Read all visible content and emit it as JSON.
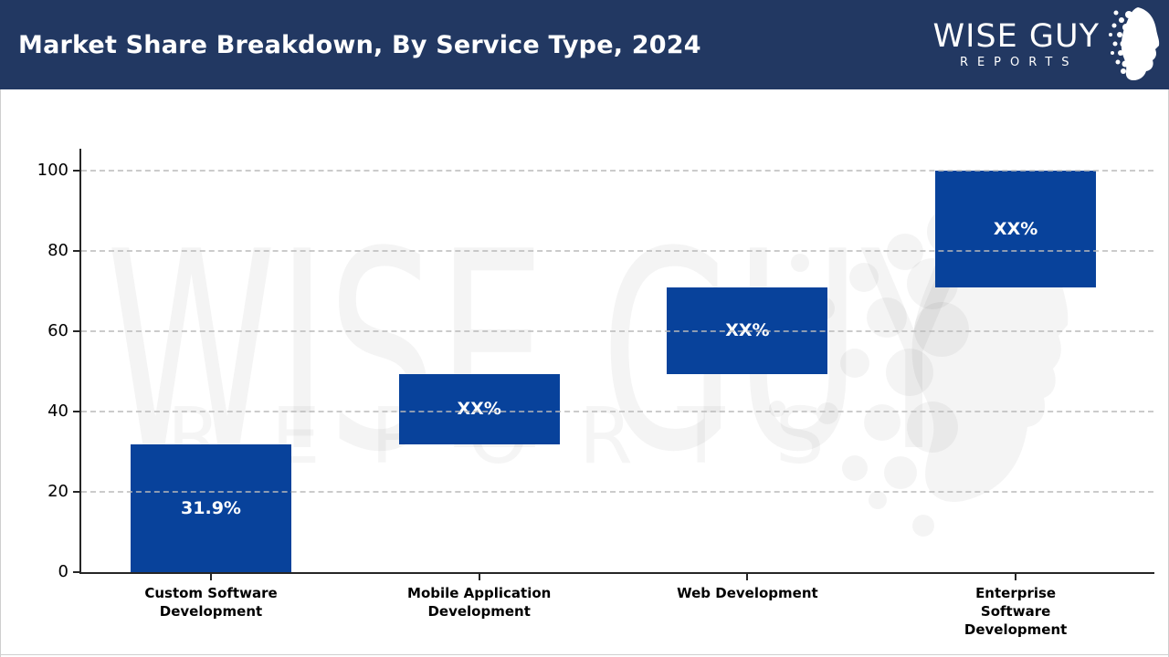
{
  "header": {
    "title": "Market Share Breakdown, By Service Type, 2024",
    "background_color": "#223862",
    "logo": {
      "wordmark": "WISE GUY",
      "subtext": "REPORTS"
    }
  },
  "watermark": {
    "wordmark": "WISE GUY",
    "subtext": "REPORTS"
  },
  "chart_data": {
    "type": "bar",
    "subtype": "waterfall",
    "title": "Market Share Breakdown, By Service Type, 2024",
    "categories": [
      "Custom Software\nDevelopment",
      "Mobile Application\nDevelopment",
      "Web Development",
      "Enterprise\nSoftware\nDevelopment"
    ],
    "bars": [
      {
        "category": "Custom Software Development",
        "start": 0,
        "end": 31.9,
        "label": "31.9%"
      },
      {
        "category": "Mobile Application Development",
        "start": 31.9,
        "end": 49.4,
        "label": "XX%"
      },
      {
        "category": "Web Development",
        "start": 49.4,
        "end": 71,
        "label": "XX%"
      },
      {
        "category": "Enterprise Software Development",
        "start": 71,
        "end": 100,
        "label": "XX%"
      }
    ],
    "xlabel": "",
    "ylabel": "",
    "ylim": [
      0,
      100
    ],
    "yticks": [
      0,
      20,
      40,
      60,
      80,
      100
    ],
    "grid": "horizontal-dashed",
    "legend": "none",
    "bar_color": "#08429B",
    "bar_label_color": "#ffffff",
    "axis_color": "#262626"
  }
}
